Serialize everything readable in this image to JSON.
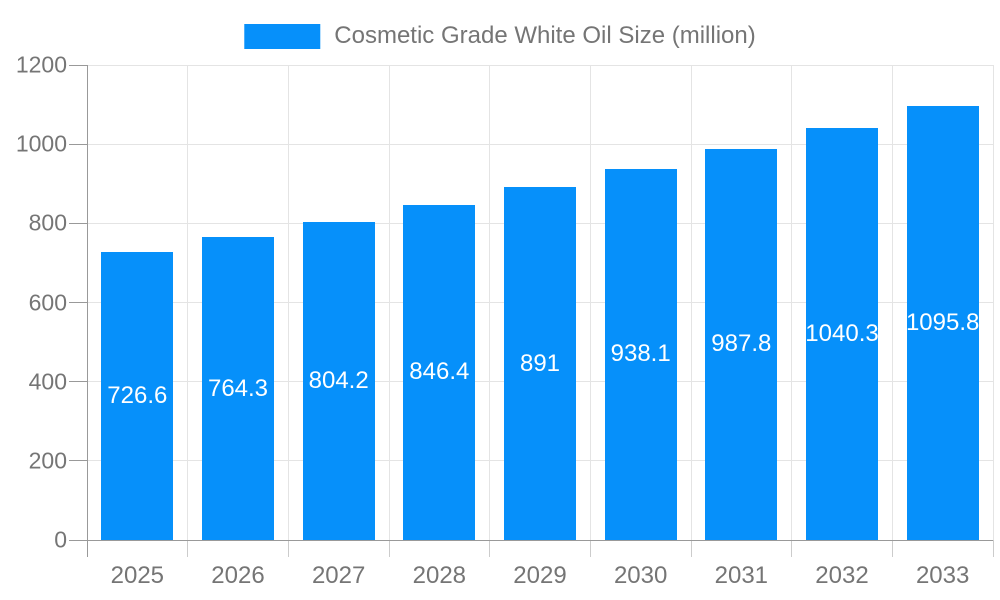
{
  "legend": {
    "label": "Cosmetic Grade White Oil Size (million)"
  },
  "chart_data": {
    "type": "bar",
    "title": "Cosmetic Grade White Oil Size (million)",
    "categories": [
      "2025",
      "2026",
      "2027",
      "2028",
      "2029",
      "2030",
      "2031",
      "2032",
      "2033"
    ],
    "series": [
      {
        "name": "Cosmetic Grade White Oil Size (million)",
        "values": [
          726.6,
          764.3,
          804.2,
          846.4,
          891,
          938.1,
          987.8,
          1040.3,
          1095.8
        ]
      }
    ],
    "value_labels": [
      "726.6",
      "764.3",
      "804.2",
      "846.4",
      "891",
      "938.1",
      "987.8",
      "1040.3",
      "1095.8"
    ],
    "xlabel": "",
    "ylabel": "",
    "ylim": [
      0,
      1200
    ],
    "yticks": [
      0,
      200,
      400,
      600,
      800,
      1000,
      1200
    ],
    "grid": true,
    "legend_position": "top-center",
    "colors": {
      "bar": "#0690fa",
      "value_label": "#ffffff",
      "axis_line": "#999999",
      "gridline": "#e4e4e4",
      "minor_tick": "#cccccc",
      "tick_text": "#757575",
      "legend_text": "#757575"
    }
  }
}
